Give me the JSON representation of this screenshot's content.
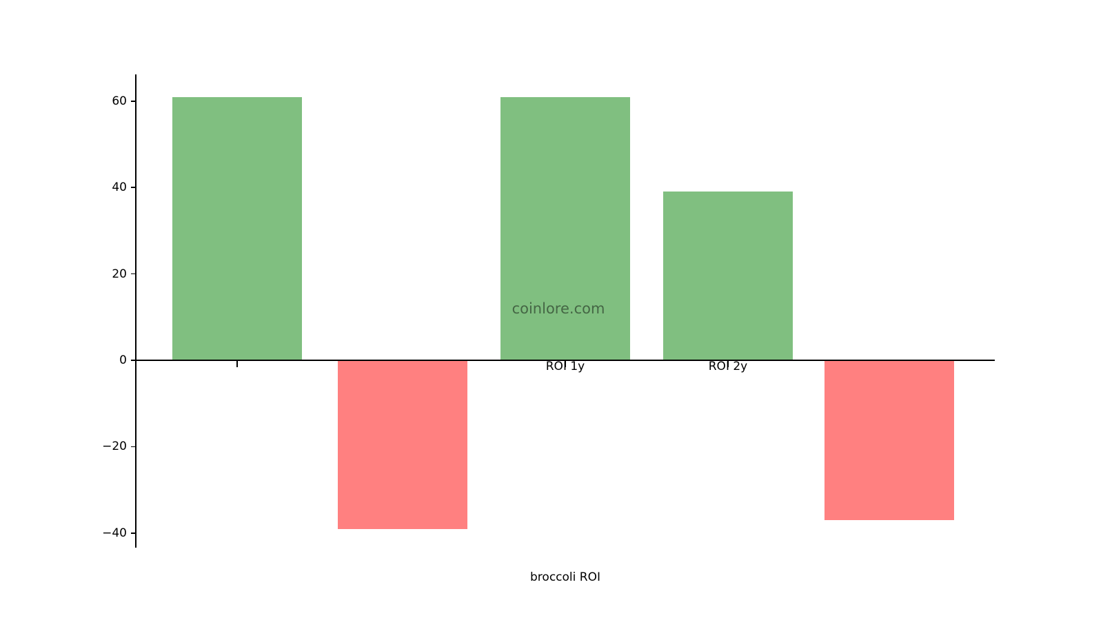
{
  "chart_data": {
    "type": "bar",
    "categories": [
      "",
      "",
      "ROI 1y",
      "ROI 2y",
      ""
    ],
    "values": [
      61,
      -39,
      61,
      39,
      -37
    ],
    "bar_colors": {
      "positive": "#80bf80",
      "negative": "#ff8080"
    },
    "title": "",
    "xlabel": "broccoli ROI",
    "ylabel": "",
    "yticks": [
      60,
      40,
      20,
      0,
      -20,
      -40
    ],
    "ytick_labels": [
      "60",
      "40",
      "20",
      "0",
      "−20",
      "−40"
    ],
    "ylim": [
      -43,
      66
    ],
    "grid": false,
    "legend": false,
    "background": "#ffffff",
    "axis_color": "#000000",
    "visible_xtick_indices": [
      0,
      2,
      3
    ],
    "watermark": "coinlore.com"
  }
}
